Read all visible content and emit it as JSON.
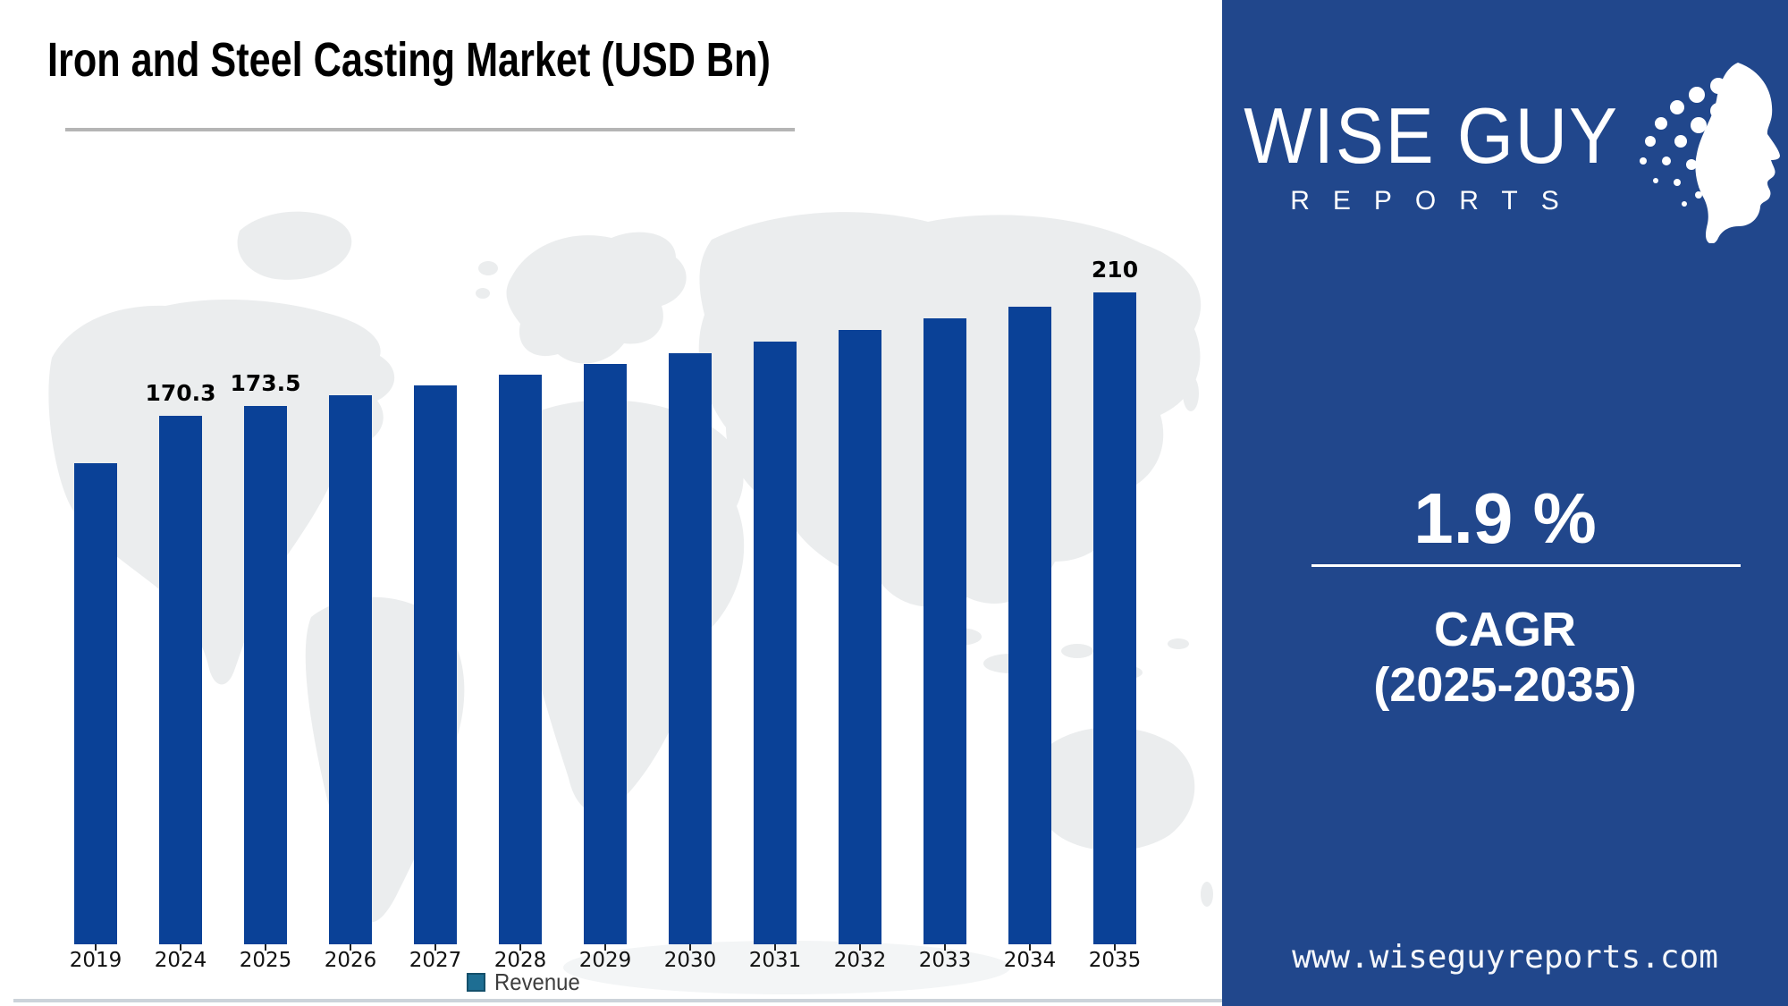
{
  "header": {
    "title": "Iron and Steel Casting Market (USD Bn)"
  },
  "chart_data": {
    "type": "bar",
    "title": "Iron and Steel Casting Market (USD Bn)",
    "categories": [
      "2019",
      "2024",
      "2025",
      "2026",
      "2027",
      "2028",
      "2029",
      "2030",
      "2031",
      "2032",
      "2033",
      "2034",
      "2035"
    ],
    "series": [
      {
        "name": "Revenue",
        "values": [
          155,
          170.3,
          173.5,
          176.8,
          180.2,
          183.6,
          187.1,
          190.6,
          194.2,
          197.9,
          201.7,
          205.5,
          210
        ]
      }
    ],
    "data_labels": {
      "2024": "170.3",
      "2025": "173.5",
      "2035": "210"
    },
    "legend": {
      "label": "Revenue",
      "position": "bottom-center"
    },
    "bar_color": "#0a4197",
    "legend_swatch_color": "#1e6e93",
    "y_axis_visible": false,
    "ylim": [
      0,
      230
    ]
  },
  "panel": {
    "background_color": "#21478c",
    "logo_line1": "WISE GUY",
    "logo_line2": "REPORTS",
    "cagr_value": "1.9 %",
    "cagr_line1": "CAGR",
    "cagr_line2": "(2025-2035)",
    "website": "www.wiseguyreports.com"
  }
}
